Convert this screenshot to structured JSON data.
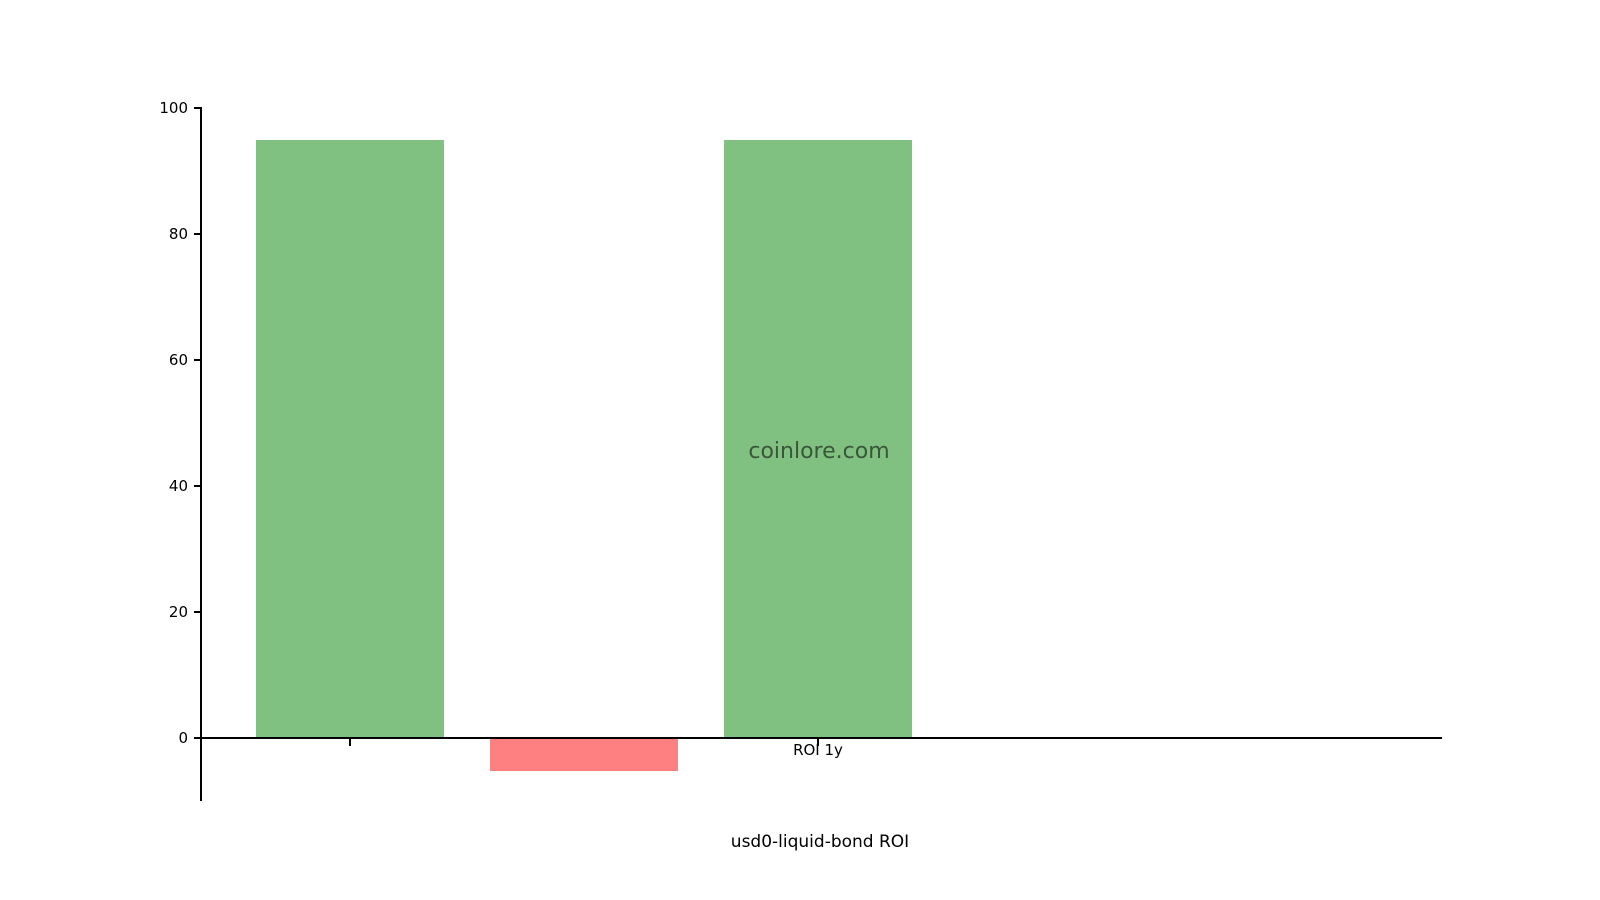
{
  "figure": {
    "watermark": "coinlore.com",
    "xlabel": "usd0-liquid-bond ROI"
  },
  "chart_data": {
    "type": "bar",
    "title": "usd0-liquid-bond ROI",
    "xlabel": "usd0-liquid-bond ROI",
    "ylabel": "",
    "categories": [
      "",
      "",
      "ROI 1y"
    ],
    "values": [
      95,
      -5,
      95
    ],
    "bar_colors": [
      "#80c080",
      "#ff8080",
      "#80c080"
    ],
    "positive_color": "#80c080",
    "negative_color": "#ff8080",
    "yticks": [
      0,
      20,
      40,
      60,
      80,
      100
    ],
    "ylim": [
      -10,
      100
    ],
    "grid": false,
    "legend_position": "none",
    "axis_color": "#000000",
    "watermark": "coinlore.com",
    "watermark_color": "rgba(0,0,0,0.55)",
    "background_color": "#ffffff"
  }
}
